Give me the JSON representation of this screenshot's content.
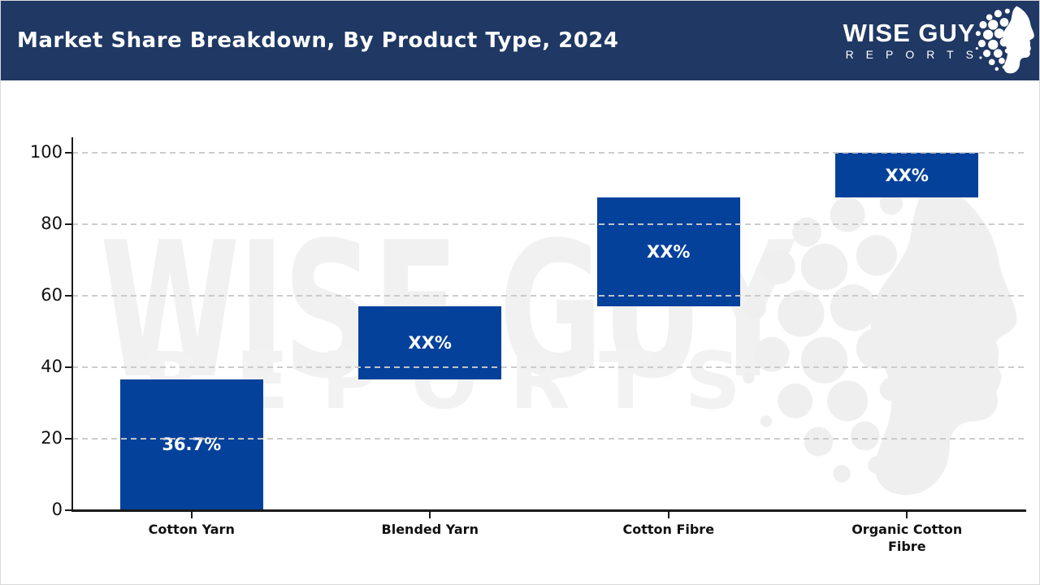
{
  "header": {
    "title": "Market Share Breakdown, By Product Type, 2024",
    "logo": {
      "brand_line1": "WISE GUY",
      "brand_line2": "REPORTS",
      "head_icon": "dotted-head-profile-icon"
    }
  },
  "watermark": {
    "line1": "WISE GUY",
    "line2": "REPORTS",
    "head_icon": "dotted-head-profile-icon"
  },
  "chart_data": {
    "type": "bar",
    "subtype": "waterfall",
    "title": "Market Share Breakdown, By Product Type, 2024",
    "categories": [
      "Cotton Yarn",
      "Blended Yarn",
      "Cotton Fibre",
      "Organic Cotton Fibre"
    ],
    "series": [
      {
        "name": "Market share (%)",
        "segments": [
          {
            "category": "Cotton Yarn",
            "start": 0,
            "end": 36.7,
            "label": "36.7%"
          },
          {
            "category": "Blended Yarn",
            "start": 36.7,
            "end": 57.0,
            "label": "XX%"
          },
          {
            "category": "Cotton Fibre",
            "start": 57.0,
            "end": 87.5,
            "label": "XX%"
          },
          {
            "category": "Organic Cotton Fibre",
            "start": 87.5,
            "end": 100.0,
            "label": "XX%"
          }
        ]
      }
    ],
    "yticks": [
      0,
      20,
      40,
      60,
      80,
      100
    ],
    "ytick_labels": [
      "0",
      "20",
      "40",
      "60",
      "80",
      "100"
    ],
    "ylim": [
      0,
      105
    ],
    "xlabel": "",
    "ylabel": "",
    "grid": "horizontal-dashed",
    "legend_position": "none",
    "colors": {
      "bar": "#04419b",
      "grid": "#c9c9c9",
      "axis": "#1a1a1a",
      "header_bg": "#1f3864",
      "label_on_bar": "#ffffff",
      "watermark": "#f0f0f0"
    }
  }
}
